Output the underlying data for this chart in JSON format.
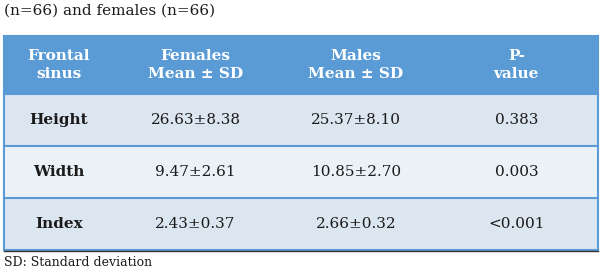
{
  "title_line": "(n=66) and females (n=66)",
  "header": [
    "Frontal\nsinus",
    "Females\nMean ± SD",
    "Males\nMean ± SD",
    "P-\nvalue"
  ],
  "rows": [
    [
      "Height",
      "26.63±8.38",
      "25.37±8.10",
      "0.383"
    ],
    [
      "Width",
      "9.47±2.61",
      "10.85±2.70",
      "0.003"
    ],
    [
      "Index",
      "2.43±0.37",
      "2.66±0.32",
      "<0.001"
    ]
  ],
  "footer": "SD: Standard deviation",
  "header_bg": "#5b9bd5",
  "row_bg_light": "#dce6f1",
  "row_bg_lighter": "#eaf2f8",
  "border_color": "#5b9bd5",
  "text_color": "#1a1a1a",
  "figsize": [
    6.02,
    2.78
  ],
  "dpi": 100,
  "title_fontsize": 11,
  "header_fontsize": 11,
  "cell_fontsize": 11,
  "footer_fontsize": 9
}
